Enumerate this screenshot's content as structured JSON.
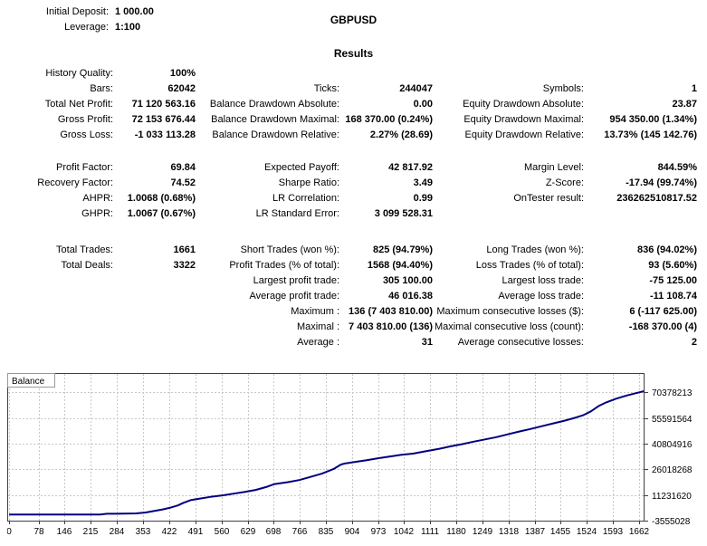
{
  "header": {
    "initial_deposit_label": "Initial Deposit:",
    "initial_deposit_value": "1 000.00",
    "leverage_label": "Leverage:",
    "leverage_value": "1:100",
    "symbol": "GBPUSD",
    "results_title": "Results"
  },
  "stats": {
    "blocks": [
      {
        "rows": [
          [
            [
              "History Quality:",
              "100%"
            ],
            [
              "",
              ""
            ],
            [
              "",
              ""
            ]
          ],
          [
            [
              "Bars:",
              "62042"
            ],
            [
              "Ticks:",
              "244047"
            ],
            [
              "Symbols:",
              "1"
            ]
          ],
          [
            [
              "Total Net Profit:",
              "71 120 563.16"
            ],
            [
              "Balance Drawdown Absolute:",
              "0.00"
            ],
            [
              "Equity Drawdown Absolute:",
              "23.87"
            ]
          ],
          [
            [
              "Gross Profit:",
              "72 153 676.44"
            ],
            [
              "Balance Drawdown Maximal:",
              "168 370.00 (0.24%)"
            ],
            [
              "Equity Drawdown Maximal:",
              "954 350.00 (1.34%)"
            ]
          ],
          [
            [
              "Gross Loss:",
              "-1 033 113.28"
            ],
            [
              "Balance Drawdown Relative:",
              "2.27% (28.69)"
            ],
            [
              "Equity Drawdown Relative:",
              "13.73% (145 142.76)"
            ]
          ]
        ]
      },
      {
        "rows": [
          [
            [
              "Profit Factor:",
              "69.84"
            ],
            [
              "Expected Payoff:",
              "42 817.92"
            ],
            [
              "Margin Level:",
              "844.59%"
            ]
          ],
          [
            [
              "Recovery Factor:",
              "74.52"
            ],
            [
              "Sharpe Ratio:",
              "3.49"
            ],
            [
              "Z-Score:",
              "-17.94 (99.74%)"
            ]
          ],
          [
            [
              "AHPR:",
              "1.0068 (0.68%)"
            ],
            [
              "LR Correlation:",
              "0.99"
            ],
            [
              "OnTester result:",
              "236262510817.52"
            ]
          ],
          [
            [
              "GHPR:",
              "1.0067 (0.67%)"
            ],
            [
              "LR Standard Error:",
              "3 099 528.31"
            ],
            [
              "",
              ""
            ]
          ]
        ]
      },
      {
        "rows": [
          [
            [
              "Total Trades:",
              "1661"
            ],
            [
              "Short Trades (won %):",
              "825 (94.79%)"
            ],
            [
              "Long Trades (won %):",
              "836 (94.02%)"
            ]
          ],
          [
            [
              "Total Deals:",
              "3322"
            ],
            [
              "Profit Trades (% of total):",
              "1568 (94.40%)"
            ],
            [
              "Loss Trades (% of total):",
              "93 (5.60%)"
            ]
          ],
          [
            [
              "",
              ""
            ],
            [
              "Largest profit trade:",
              "305 100.00"
            ],
            [
              "Largest loss trade:",
              "-75 125.00"
            ]
          ],
          [
            [
              "",
              ""
            ],
            [
              "Average profit trade:",
              "46 016.38"
            ],
            [
              "Average loss trade:",
              "-11 108.74"
            ]
          ],
          [
            [
              "",
              ""
            ],
            [
              "Maximum :",
              "136 (7 403 810.00)"
            ],
            [
              "Maximum consecutive losses ($):",
              "6 (-117 625.00)"
            ]
          ],
          [
            [
              "",
              ""
            ],
            [
              "Maximal :",
              "7 403 810.00 (136)"
            ],
            [
              "Maximal consecutive loss (count):",
              "-168 370.00 (4)"
            ]
          ],
          [
            [
              "",
              ""
            ],
            [
              "Average :",
              "31"
            ],
            [
              "Average consecutive losses:",
              "2"
            ]
          ]
        ]
      }
    ]
  },
  "chart_data": {
    "type": "line",
    "title": "Balance",
    "legend_position": "top-left",
    "grid": true,
    "colors": {
      "line": "#000080",
      "grid": "#c8c8c8",
      "border": "#404040",
      "text": "#000000"
    },
    "xlim": [
      -5,
      1676
    ],
    "ylim": [
      -4000000,
      81500000
    ],
    "x_ticks": [
      0,
      78,
      146,
      215,
      284,
      353,
      422,
      491,
      560,
      629,
      698,
      766,
      835,
      904,
      973,
      1042,
      1111,
      1180,
      1249,
      1318,
      1387,
      1455,
      1524,
      1593,
      1662
    ],
    "y_ticks": [
      70378213,
      55591564,
      40804916,
      26018268,
      11231620,
      -3555028
    ],
    "series": [
      {
        "name": "Balance",
        "points": [
          [
            0,
            1000
          ],
          [
            120,
            1000
          ],
          [
            240,
            1000
          ],
          [
            258,
            500000
          ],
          [
            300,
            550000
          ],
          [
            335,
            700000
          ],
          [
            360,
            1200000
          ],
          [
            385,
            2200000
          ],
          [
            405,
            3000000
          ],
          [
            425,
            4000000
          ],
          [
            445,
            5300000
          ],
          [
            460,
            6800000
          ],
          [
            480,
            8400000
          ],
          [
            500,
            9100000
          ],
          [
            530,
            10200000
          ],
          [
            565,
            11100000
          ],
          [
            590,
            12000000
          ],
          [
            620,
            13000000
          ],
          [
            650,
            14200000
          ],
          [
            680,
            16000000
          ],
          [
            700,
            17600000
          ],
          [
            735,
            18700000
          ],
          [
            765,
            19900000
          ],
          [
            795,
            21700000
          ],
          [
            825,
            23600000
          ],
          [
            855,
            26200000
          ],
          [
            875,
            28800000
          ],
          [
            885,
            29400000
          ],
          [
            915,
            30400000
          ],
          [
            945,
            31400000
          ],
          [
            975,
            32500000
          ],
          [
            1005,
            33500000
          ],
          [
            1035,
            34400000
          ],
          [
            1065,
            35100000
          ],
          [
            1105,
            36700000
          ],
          [
            1135,
            37900000
          ],
          [
            1165,
            39300000
          ],
          [
            1195,
            40600000
          ],
          [
            1225,
            42000000
          ],
          [
            1255,
            43300000
          ],
          [
            1285,
            44600000
          ],
          [
            1315,
            46200000
          ],
          [
            1345,
            47800000
          ],
          [
            1375,
            49300000
          ],
          [
            1405,
            50900000
          ],
          [
            1435,
            52500000
          ],
          [
            1465,
            54100000
          ],
          [
            1495,
            55900000
          ],
          [
            1515,
            57300000
          ],
          [
            1535,
            59500000
          ],
          [
            1555,
            62500000
          ],
          [
            1575,
            64600000
          ],
          [
            1600,
            66700000
          ],
          [
            1630,
            68600000
          ],
          [
            1662,
            70400000
          ],
          [
            1676,
            71120563
          ]
        ]
      }
    ]
  }
}
